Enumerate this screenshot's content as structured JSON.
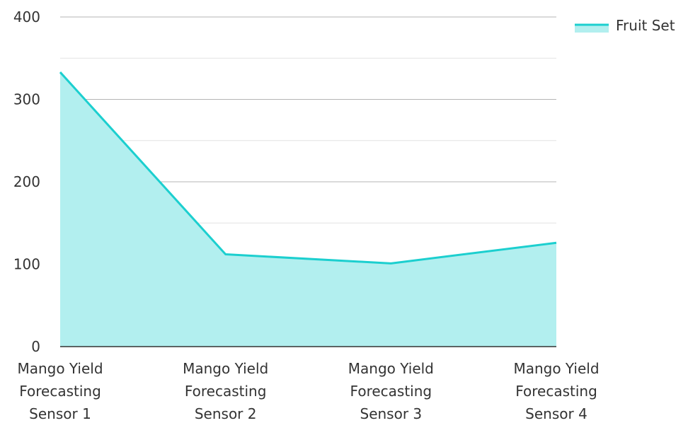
{
  "chart_data": {
    "type": "area",
    "title": "",
    "xlabel": "",
    "ylabel": "",
    "categories": [
      [
        "Mango Yield",
        "Forecasting",
        "Sensor 1"
      ],
      [
        "Mango Yield",
        "Forecasting",
        "Sensor 2"
      ],
      [
        "Mango Yield",
        "Forecasting",
        "Sensor 3"
      ],
      [
        "Mango Yield",
        "Forecasting",
        "Sensor 4"
      ]
    ],
    "series": [
      {
        "name": "Fruit Set",
        "values": [
          333,
          112,
          101,
          126
        ]
      }
    ],
    "ylim": [
      0,
      400
    ],
    "y_ticks": [
      0,
      100,
      200,
      300,
      400
    ],
    "grid": true,
    "legend_position": "top-right",
    "colors": {
      "line": "#1ccfcf",
      "fill": "#b2efef",
      "major_grid": "#b5b5b5",
      "minor_grid": "#e3e3e3",
      "axis": "#333333",
      "text": "#333333"
    }
  }
}
